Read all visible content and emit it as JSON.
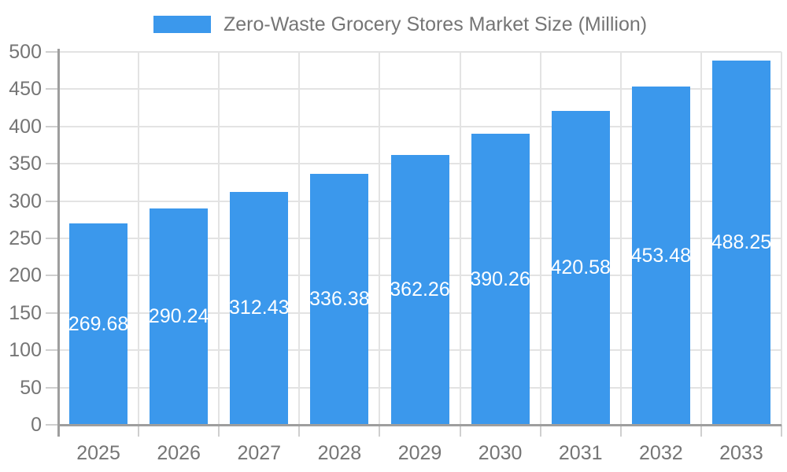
{
  "chart_data": {
    "type": "bar",
    "legend_label": "Zero-Waste Grocery Stores Market Size (Million)",
    "legend_position": "top",
    "categories": [
      "2025",
      "2026",
      "2027",
      "2028",
      "2029",
      "2030",
      "2031",
      "2032",
      "2033"
    ],
    "values": [
      269.68,
      290.24,
      312.43,
      336.38,
      362.26,
      390.26,
      420.58,
      453.48,
      488.25
    ],
    "value_labels": [
      "269.68",
      "290.24",
      "312.43",
      "336.38",
      "362.26",
      "390.26",
      "420.58",
      "453.48",
      "488.25"
    ],
    "value_label_position": "inside-middle",
    "ylim": [
      0,
      500
    ],
    "yticks": [
      0,
      50,
      100,
      150,
      200,
      250,
      300,
      350,
      400,
      450,
      500
    ],
    "grid": true,
    "colors": {
      "bar": "#3b98ec",
      "grid_line": "#e3e3e3",
      "tick_line": "#cfcfcf",
      "axis_line": "#9e9e9e",
      "axis_text": "#757575",
      "value_label_text": "#ffffff",
      "background": "#ffffff"
    }
  }
}
